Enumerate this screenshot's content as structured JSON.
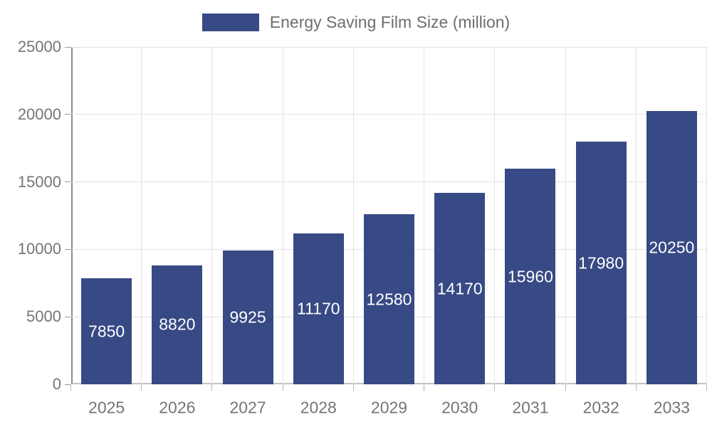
{
  "chart_data": {
    "type": "bar",
    "title": "Energy Saving Film Size (million)",
    "legend_entries": [
      "Energy Saving Film Size (million)"
    ],
    "legend_position": "top-center",
    "categories": [
      "2025",
      "2026",
      "2027",
      "2028",
      "2029",
      "2030",
      "2031",
      "2032",
      "2033"
    ],
    "values": [
      7850,
      8820,
      9925,
      11170,
      12580,
      14170,
      15960,
      17980,
      20250
    ],
    "xlabel": "",
    "ylabel": "",
    "ylim": [
      0,
      25000
    ],
    "yticks": [
      0,
      5000,
      10000,
      15000,
      20000,
      25000
    ],
    "grid": true,
    "colors": {
      "bar": "#374a85",
      "value_label": "#ffffff",
      "axis_text": "#757575",
      "legend_text": "#6e6e6e",
      "gridline": "#e3e3e3",
      "y_axis_line": "#8c8c8c",
      "x_axis_line": "#c2c2c2"
    }
  }
}
